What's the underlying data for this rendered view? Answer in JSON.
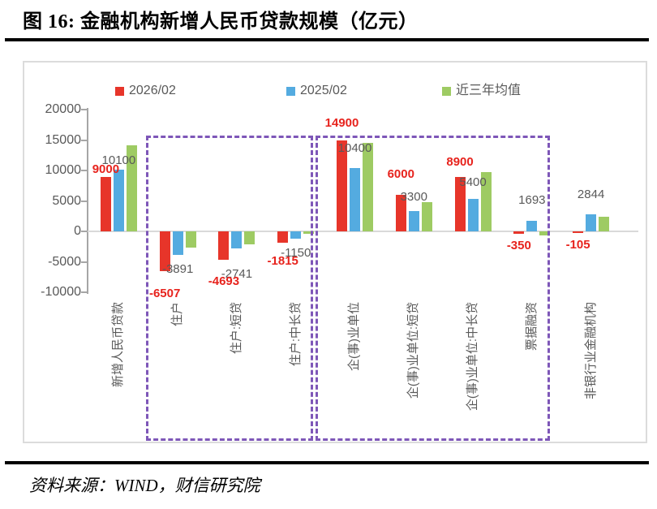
{
  "title": "图 16:  金融机构新增人民币贷款规模（亿元）",
  "source": "资料来源：WIND，财信研究院",
  "legend": [
    {
      "label": "2026/02",
      "color": "#e7352a"
    },
    {
      "label": "2025/02",
      "color": "#54abe0"
    },
    {
      "label": "近三年均值",
      "color": "#9ecb63"
    }
  ],
  "chart_data": {
    "type": "bar",
    "title": "金融机构新增人民币贷款规模（亿元）",
    "categories": [
      "新增人民币贷款",
      "住户",
      "住户:短贷",
      "住户:中长贷",
      "企(事)业单位",
      "企(事)业单位:短贷",
      "企(事)业单位:中长贷",
      "票据融资",
      "非银行业金融机构"
    ],
    "series": [
      {
        "name": "2026/02",
        "color": "#e7352a",
        "values": [
          9000,
          -6507,
          -4693,
          -1815,
          14900,
          6000,
          8900,
          -350,
          -105
        ],
        "labels_shown": true,
        "label_color": "#e7231d"
      },
      {
        "name": "2025/02",
        "color": "#54abe0",
        "values": [
          10100,
          -3891,
          -2741,
          -1150,
          10400,
          3300,
          5400,
          1693,
          2844
        ],
        "labels_shown": true,
        "label_color": "#595959"
      },
      {
        "name": "近三年均值",
        "color": "#9ecb63",
        "values": [
          14200,
          -2600,
          -2100,
          -450,
          14600,
          4800,
          9800,
          -700,
          2400
        ],
        "labels_shown": false,
        "label_color": "#595959"
      }
    ],
    "y_ticks": [
      20000,
      15000,
      10000,
      5000,
      0,
      -5000,
      -10000
    ],
    "ylim": [
      -10000,
      20000
    ],
    "grid": false,
    "legend_position": "top",
    "annotation_boxes": [
      {
        "from_category": 1,
        "to_category": 3
      },
      {
        "from_category": 4,
        "to_category": 7
      }
    ],
    "annotation_color": "#7e57b8"
  }
}
